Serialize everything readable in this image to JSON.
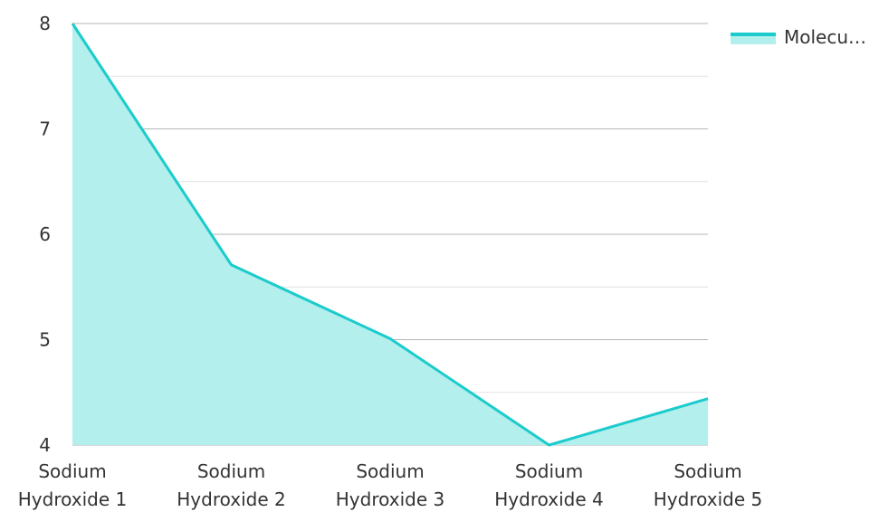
{
  "chart_data": {
    "type": "area",
    "categories": [
      "Sodium Hydroxide 1",
      "Sodium Hydroxide 2",
      "Sodium Hydroxide 3",
      "Sodium Hydroxide 4",
      "Sodium Hydroxide 5"
    ],
    "category_lines": [
      [
        "Sodium",
        "Hydroxide 1"
      ],
      [
        "Sodium",
        "Hydroxide 2"
      ],
      [
        "Sodium",
        "Hydroxide 3"
      ],
      [
        "Sodium",
        "Hydroxide 4"
      ],
      [
        "Sodium",
        "Hydroxide 5"
      ]
    ],
    "series": [
      {
        "name": "Molecu…",
        "values": [
          8.0,
          5.71,
          5.01,
          4.0,
          4.44
        ]
      }
    ],
    "ylim": [
      4,
      8
    ],
    "yticks": [
      "4",
      "5",
      "6",
      "7",
      "8"
    ],
    "grid": true,
    "legend": "top-right",
    "colors": {
      "line": "#1ccbcc",
      "fill": "#b2efed",
      "grid_major": "#b5b5b5",
      "grid_minor": "#e2e2e2"
    }
  }
}
